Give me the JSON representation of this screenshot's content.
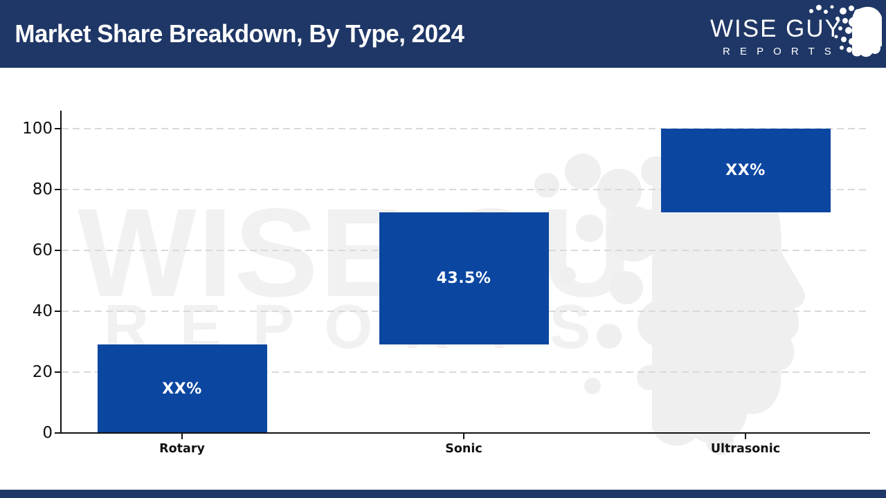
{
  "header": {
    "title": "Market Share Breakdown, By Type, 2024",
    "logo": {
      "line1": "WISE GUY",
      "line2": "R E P O R T S"
    }
  },
  "watermark": {
    "line1": "WISE GUY",
    "line2": "R E P O R T S"
  },
  "footer": {},
  "colors": {
    "header_bg": "#1f3766",
    "footer_bg": "#1f3766",
    "bar": "#0b47a1",
    "grid": "#d9d9d9",
    "axis": "#111111",
    "watermark": "#f1f1f1"
  },
  "chart_data": {
    "type": "bar",
    "subtype": "floating_waterfall_segments",
    "title": "Market Share Breakdown, By Type, 2024",
    "categories": [
      "Rotary",
      "Sonic",
      "Ultrasonic"
    ],
    "series": [
      {
        "name": "Market share (%)",
        "segments": [
          {
            "category": "Rotary",
            "from": 0,
            "to": 29,
            "label": "XX%"
          },
          {
            "category": "Sonic",
            "from": 29,
            "to": 72.5,
            "label": "43.5%"
          },
          {
            "category": "Ultrasonic",
            "from": 72.5,
            "to": 100,
            "label": "XX%"
          }
        ]
      }
    ],
    "xlabel": "",
    "ylabel": "",
    "ylim": [
      0,
      105
    ],
    "yticks": [
      0,
      20,
      40,
      60,
      80,
      100
    ],
    "grid": {
      "horizontal": true,
      "style": "dashed",
      "color": "#d9d9d9"
    },
    "legend": null,
    "bar_color": "#0b47a1",
    "bar_label_color": "#ffffff"
  }
}
